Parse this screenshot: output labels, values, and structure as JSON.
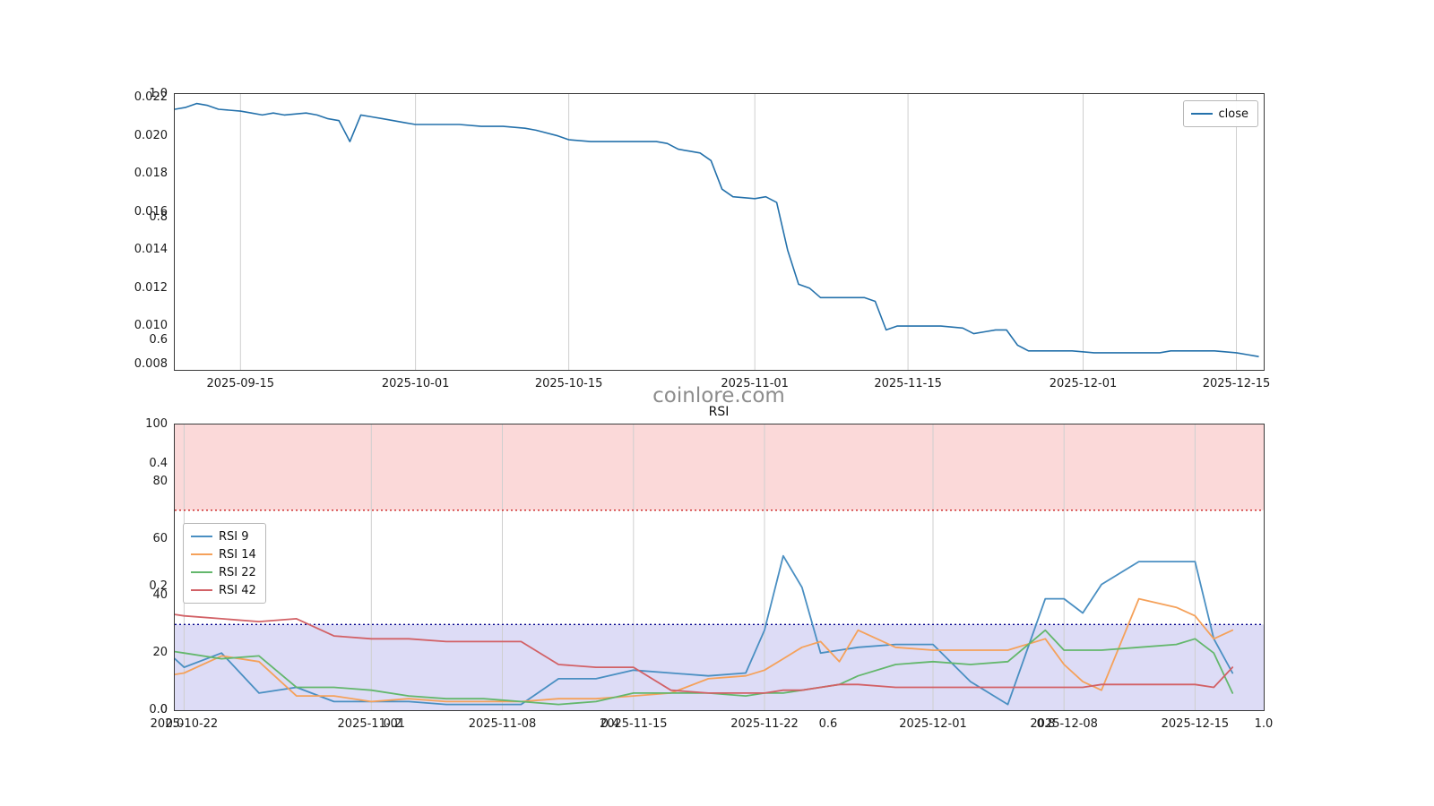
{
  "watermark": "coinlore.com",
  "overlay_axis": {
    "y_ticks": [
      "1.0",
      "0.8",
      "0.6",
      "0.4",
      "0.2",
      "0.0"
    ],
    "x_ticks": [
      "0.0",
      "0.2",
      "0.4",
      "0.6",
      "0.8",
      "1.0"
    ]
  },
  "chart_data": [
    {
      "type": "line",
      "title": "",
      "legend_position": "upper right",
      "grid": "vertical",
      "x_range": [
        "2025-09-09",
        "2025-12-17T12:00:00"
      ],
      "ylim": [
        0.0077,
        0.0222
      ],
      "y_ticks": [
        {
          "value": 0.008,
          "label": "0.008"
        },
        {
          "value": 0.01,
          "label": "0.010"
        },
        {
          "value": 0.012,
          "label": "0.012"
        },
        {
          "value": 0.014,
          "label": "0.014"
        },
        {
          "value": 0.016,
          "label": "0.016"
        },
        {
          "value": 0.018,
          "label": "0.018"
        },
        {
          "value": 0.02,
          "label": "0.020"
        },
        {
          "value": 0.022,
          "label": "0.022"
        }
      ],
      "x_ticks": [
        {
          "date": "2025-09-15",
          "label": "2025-09-15"
        },
        {
          "date": "2025-10-01",
          "label": "2025-10-01"
        },
        {
          "date": "2025-10-15",
          "label": "2025-10-15"
        },
        {
          "date": "2025-11-01",
          "label": "2025-11-01"
        },
        {
          "date": "2025-11-15",
          "label": "2025-11-15"
        },
        {
          "date": "2025-12-01",
          "label": "2025-12-01"
        },
        {
          "date": "2025-12-15",
          "label": "2025-12-15"
        }
      ],
      "series": [
        {
          "name": "close",
          "color": "#2471ab",
          "x": [
            "2025-09-09",
            "2025-09-10",
            "2025-09-11",
            "2025-09-12",
            "2025-09-13",
            "2025-09-15",
            "2025-09-16",
            "2025-09-17",
            "2025-09-18",
            "2025-09-19",
            "2025-09-21",
            "2025-09-22",
            "2025-09-23",
            "2025-09-24",
            "2025-09-25",
            "2025-09-26",
            "2025-09-27",
            "2025-09-28",
            "2025-09-30",
            "2025-10-01",
            "2025-10-03",
            "2025-10-05",
            "2025-10-07",
            "2025-10-09",
            "2025-10-11",
            "2025-10-12",
            "2025-10-14",
            "2025-10-15",
            "2025-10-17",
            "2025-10-19",
            "2025-10-21",
            "2025-10-23",
            "2025-10-24",
            "2025-10-25",
            "2025-10-26",
            "2025-10-27",
            "2025-10-28",
            "2025-10-29",
            "2025-10-30",
            "2025-11-01",
            "2025-11-02",
            "2025-11-03",
            "2025-11-04",
            "2025-11-05",
            "2025-11-06",
            "2025-11-07",
            "2025-11-09",
            "2025-11-11",
            "2025-11-12",
            "2025-11-13",
            "2025-11-14",
            "2025-11-16",
            "2025-11-18",
            "2025-11-20",
            "2025-11-21",
            "2025-11-22",
            "2025-11-23",
            "2025-11-24",
            "2025-11-25",
            "2025-11-26",
            "2025-11-28",
            "2025-11-30",
            "2025-12-02",
            "2025-12-04",
            "2025-12-06",
            "2025-12-08",
            "2025-12-09",
            "2025-12-11",
            "2025-12-13",
            "2025-12-15",
            "2025-12-16",
            "2025-12-17"
          ],
          "values": [
            0.0214,
            0.0215,
            0.0217,
            0.0216,
            0.0214,
            0.0213,
            0.0212,
            0.0211,
            0.0212,
            0.0211,
            0.0212,
            0.0211,
            0.0209,
            0.0208,
            0.0197,
            0.0211,
            0.021,
            0.0209,
            0.0207,
            0.0206,
            0.0206,
            0.0206,
            0.0205,
            0.0205,
            0.0204,
            0.0203,
            0.02,
            0.0198,
            0.0197,
            0.0197,
            0.0197,
            0.0197,
            0.0196,
            0.0193,
            0.0192,
            0.0191,
            0.0187,
            0.0172,
            0.0168,
            0.0167,
            0.0168,
            0.0165,
            0.014,
            0.0122,
            0.012,
            0.0115,
            0.0115,
            0.0115,
            0.0113,
            0.0098,
            0.01,
            0.01,
            0.01,
            0.0099,
            0.0096,
            0.0097,
            0.0098,
            0.0098,
            0.009,
            0.0087,
            0.0087,
            0.0087,
            0.0086,
            0.0086,
            0.0086,
            0.0086,
            0.0087,
            0.0087,
            0.0087,
            0.0086,
            0.0085,
            0.0084
          ]
        }
      ]
    },
    {
      "type": "line",
      "title": "RSI",
      "legend_position": "center left",
      "grid": "vertical",
      "x_range": [
        "2025-10-21T12:00:00",
        "2025-12-18T16:00:00"
      ],
      "ylim": [
        0,
        100
      ],
      "bands": [
        {
          "from": 70,
          "to": 100,
          "fill": "#fbd9d9",
          "threshold": 70,
          "line_color": "#cc1f1f"
        },
        {
          "from": 0,
          "to": 30,
          "fill": "#dddcf6",
          "threshold": 30,
          "line_color": "#00008b"
        }
      ],
      "y_ticks": [
        {
          "value": 0,
          "label": "0"
        },
        {
          "value": 20,
          "label": "20"
        },
        {
          "value": 40,
          "label": "40"
        },
        {
          "value": 60,
          "label": "60"
        },
        {
          "value": 80,
          "label": "80"
        },
        {
          "value": 100,
          "label": "100"
        }
      ],
      "x_ticks": [
        {
          "date": "2025-10-22",
          "label": "2025-10-22"
        },
        {
          "date": "2025-11-01",
          "label": "2025-11-01"
        },
        {
          "date": "2025-11-08",
          "label": "2025-11-08"
        },
        {
          "date": "2025-11-15",
          "label": "2025-11-15"
        },
        {
          "date": "2025-11-22",
          "label": "2025-11-22"
        },
        {
          "date": "2025-12-01",
          "label": "2025-12-01"
        },
        {
          "date": "2025-12-08",
          "label": "2025-12-08"
        },
        {
          "date": "2025-12-15",
          "label": "2025-12-15"
        }
      ],
      "categories": [
        "2025-10-21",
        "2025-10-22",
        "2025-10-24",
        "2025-10-26",
        "2025-10-28",
        "2025-10-30",
        "2025-11-01",
        "2025-11-03",
        "2025-11-05",
        "2025-11-07",
        "2025-11-09",
        "2025-11-11",
        "2025-11-13",
        "2025-11-15",
        "2025-11-17",
        "2025-11-19",
        "2025-11-21",
        "2025-11-22",
        "2025-11-23",
        "2025-11-24",
        "2025-11-25",
        "2025-11-26",
        "2025-11-27",
        "2025-11-29",
        "2025-12-01",
        "2025-12-03",
        "2025-12-05",
        "2025-12-07",
        "2025-12-08",
        "2025-12-09",
        "2025-12-10",
        "2025-12-12",
        "2025-12-14",
        "2025-12-15",
        "2025-12-16",
        "2025-12-17"
      ],
      "series": [
        {
          "name": "RSI 9",
          "color": "#4a8fc2",
          "values": [
            21,
            15,
            20,
            6,
            8,
            3,
            3,
            3,
            2,
            2,
            2,
            11,
            11,
            14,
            13,
            12,
            13,
            28,
            54,
            43,
            20,
            21,
            22,
            23,
            23,
            10,
            2,
            39,
            39,
            34,
            44,
            52,
            52,
            52,
            25,
            13
          ]
        },
        {
          "name": "RSI 14",
          "color": "#f5a15a",
          "values": [
            12,
            13,
            19,
            17,
            5,
            5,
            3,
            4,
            3,
            3,
            3,
            4,
            4,
            5,
            6,
            11,
            12,
            14,
            18,
            22,
            24,
            17,
            28,
            22,
            21,
            21,
            21,
            25,
            16,
            10,
            7,
            39,
            36,
            33,
            25,
            28
          ]
        },
        {
          "name": "RSI 22",
          "color": "#63b76c",
          "values": [
            21,
            20,
            18,
            19,
            8,
            8,
            7,
            5,
            4,
            4,
            3,
            2,
            3,
            6,
            6,
            6,
            5,
            6,
            6,
            7,
            8,
            9,
            12,
            16,
            17,
            16,
            17,
            28,
            21,
            21,
            21,
            22,
            23,
            25,
            20,
            6
          ]
        },
        {
          "name": "RSI 42",
          "color": "#d26166",
          "values": [
            34,
            33,
            32,
            31,
            32,
            26,
            25,
            25,
            24,
            24,
            24,
            16,
            15,
            15,
            7,
            6,
            6,
            6,
            7,
            7,
            8,
            9,
            9,
            8,
            8,
            8,
            8,
            8,
            8,
            8,
            9,
            9,
            9,
            9,
            8,
            15
          ]
        }
      ]
    }
  ]
}
